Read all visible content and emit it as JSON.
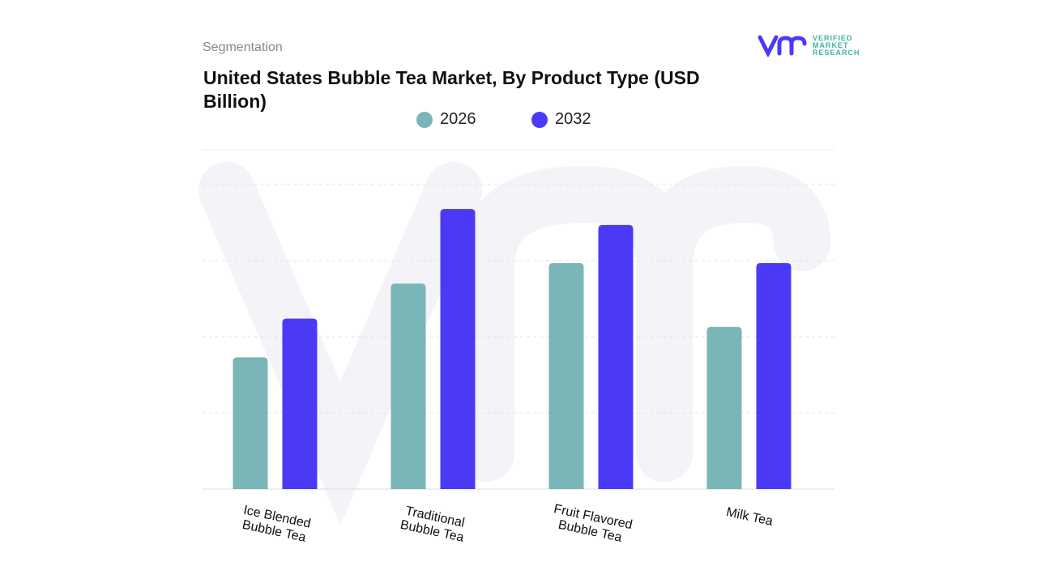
{
  "header": {
    "segment_label": "Segmentation",
    "title": "United States Bubble Tea Market, By Product Type (USD Billion)"
  },
  "logo": {
    "line1": "VERIFIED",
    "line2": "MARKET",
    "line3": "RESEARCH"
  },
  "chart_data": {
    "type": "bar",
    "title": "United States Bubble Tea Market, By Product Type (USD Billion)",
    "categories": [
      "Ice Blended Bubble Tea",
      "Traditional Bubble Tea",
      "Fruit Flavored Bubble Tea",
      "Milk Tea"
    ],
    "series": [
      {
        "name": "2026",
        "color": "#7ab5b8",
        "values": [
          1.73,
          2.7,
          2.97,
          2.13
        ]
      },
      {
        "name": "2032",
        "color": "#4b3af5",
        "values": [
          2.24,
          3.68,
          3.47,
          2.97
        ]
      }
    ],
    "ylim": [
      0,
      4
    ],
    "grid": true,
    "legend": "top-center",
    "y_tick_labels_shown": false
  }
}
